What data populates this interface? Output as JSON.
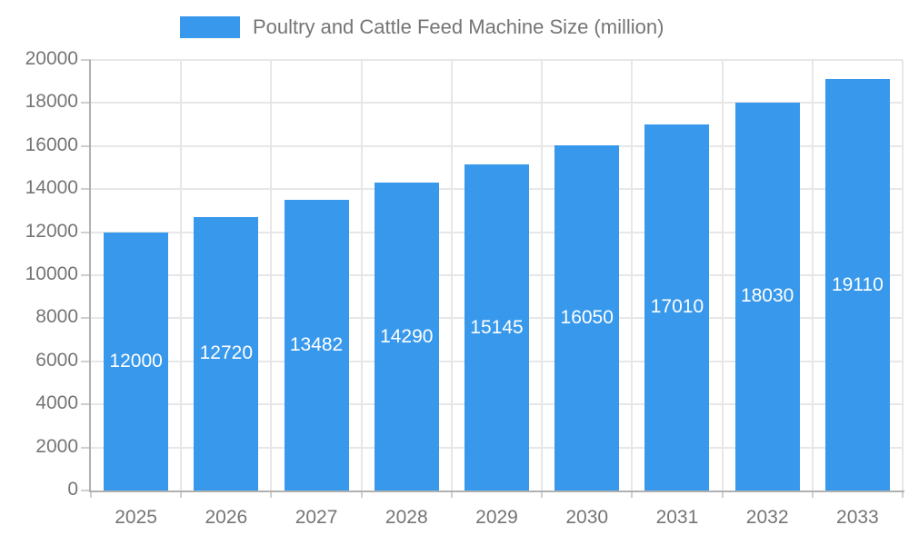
{
  "legend": {
    "label": "Poultry and Cattle Feed Machine Size (million)",
    "swatch_color": "#3899EC"
  },
  "chart_data": {
    "type": "bar",
    "title": "Poultry and Cattle Feed Machine Size (million)",
    "categories": [
      "2025",
      "2026",
      "2027",
      "2028",
      "2029",
      "2030",
      "2031",
      "2032",
      "2033"
    ],
    "values": [
      12000,
      12720,
      13482,
      14290,
      15145,
      16050,
      17010,
      18030,
      19110
    ],
    "xlabel": "",
    "ylabel": "",
    "ylim": [
      0,
      20000
    ],
    "ytick_step": 2000,
    "ytick_labels": [
      "0",
      "2000",
      "4000",
      "6000",
      "8000",
      "10000",
      "12000",
      "14000",
      "16000",
      "18000",
      "20000"
    ],
    "grid": true,
    "legend_position": "top",
    "bar_color": "#3899EC",
    "value_label_color": "#ffffff",
    "axis_text_color": "#757575",
    "gridline_color": "#e7e7e7",
    "axis_line_color": "#b0b0b0"
  }
}
